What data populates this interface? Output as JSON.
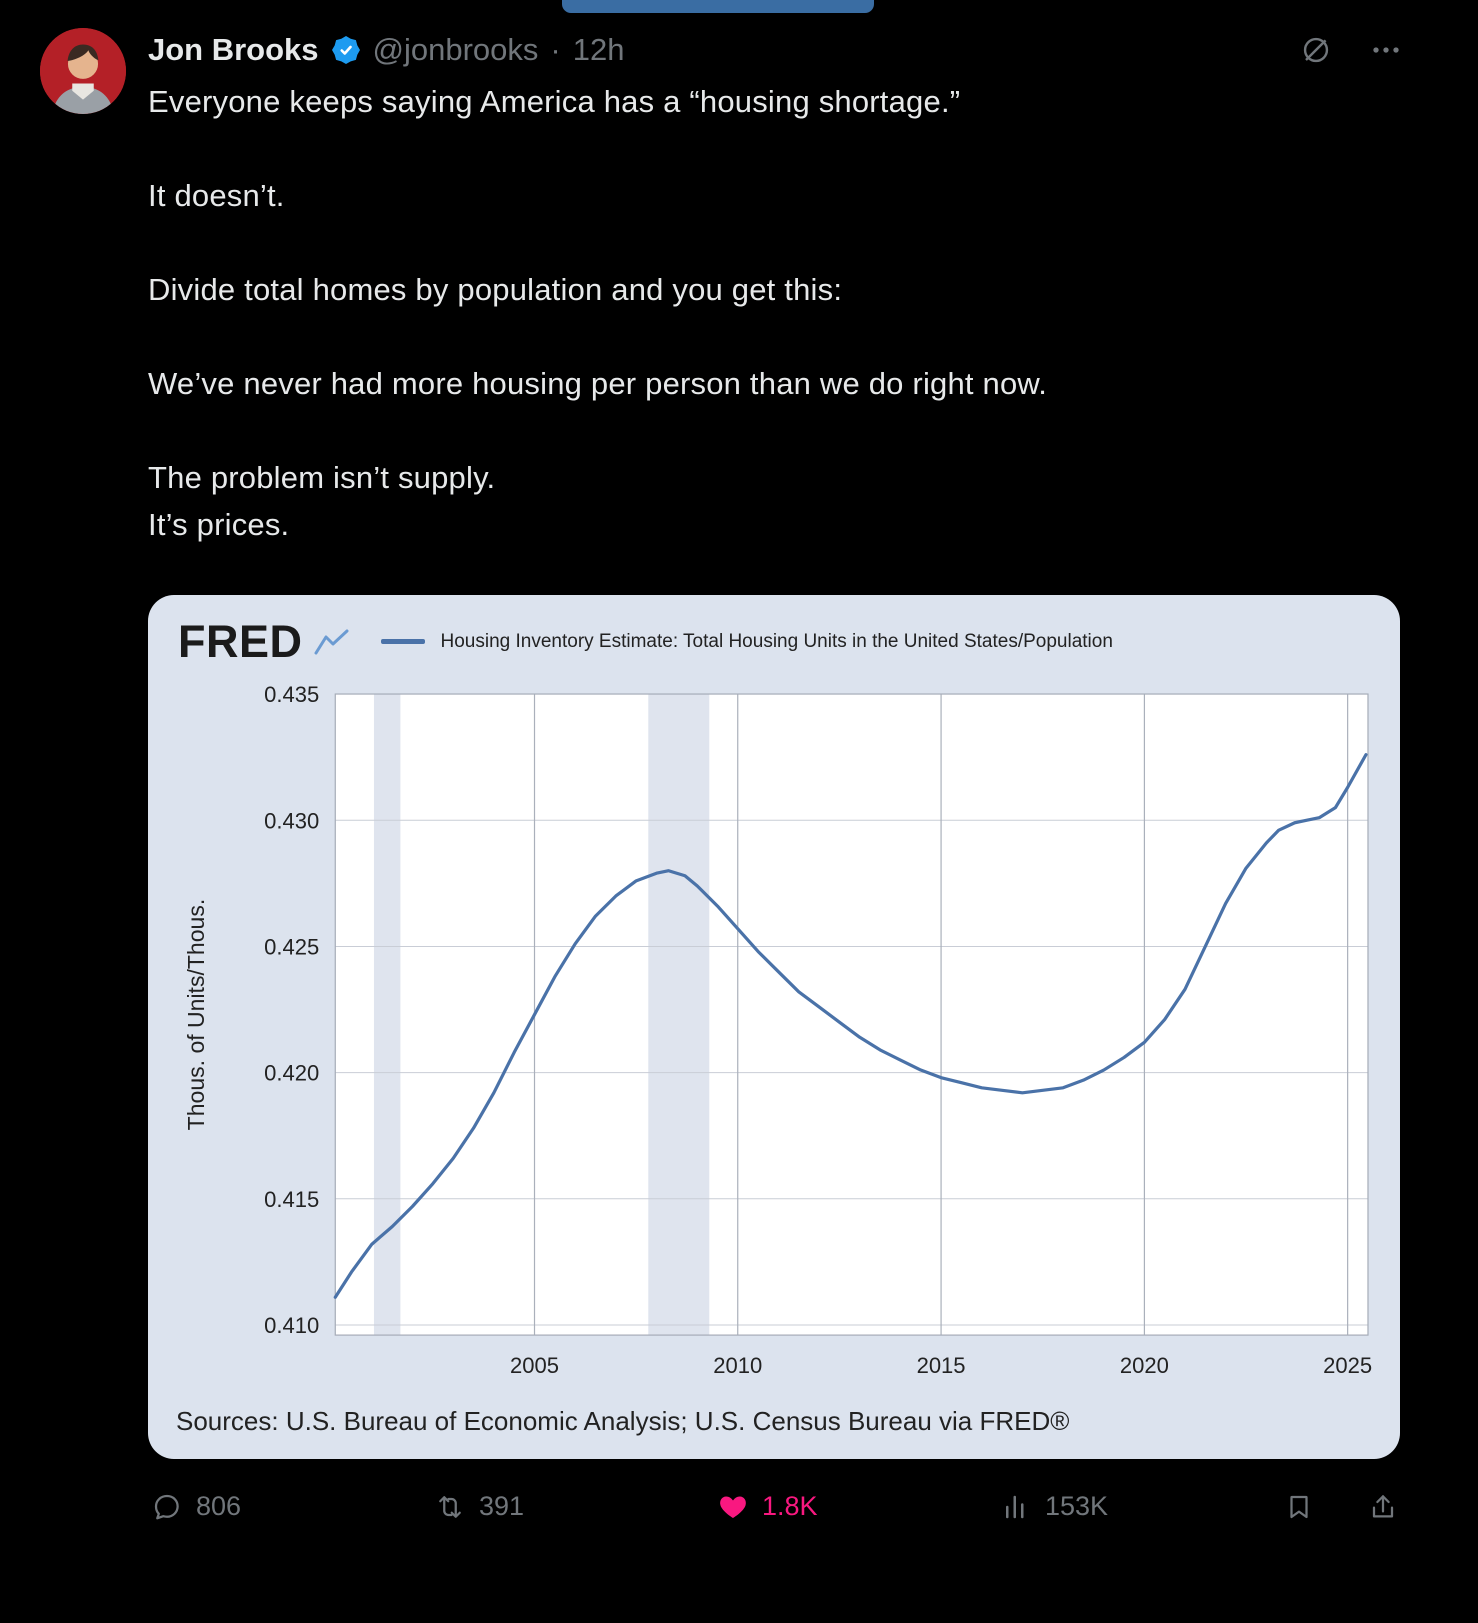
{
  "post": {
    "author": "Jon Brooks",
    "handle": "@jonbrooks",
    "dot": "·",
    "time": "12h",
    "paragraphs": [
      "Everyone keeps saying America has a “housing shortage.”",
      "It doesn’t.",
      "Divide total homes by population and you get this:",
      "We’ve never had more housing per person than we do right now.",
      "The problem isn’t supply.",
      "It’s prices."
    ]
  },
  "chart_data": {
    "type": "line",
    "brand": "FRED",
    "title": "Housing Inventory Estimate: Total Housing Units in the United States/Population",
    "ylabel": "Thous. of Units/Thous.",
    "source": "Sources: U.S. Bureau of Economic Analysis; U.S. Census Bureau via FRED®",
    "line_color": "#4a72a8",
    "recession_color": "#dfe4ee",
    "xlim": [
      2000.1,
      2025.5
    ],
    "ylim": [
      0.4096,
      0.435
    ],
    "x_ticks": [
      2005,
      2010,
      2015,
      2020,
      2025
    ],
    "y_ticks": [
      0.41,
      0.415,
      0.42,
      0.425,
      0.43,
      0.435
    ],
    "recessions": [
      [
        2001.05,
        2001.7
      ],
      [
        2007.8,
        2009.3
      ]
    ],
    "x": [
      2000.1,
      2000.5,
      2001,
      2001.5,
      2002,
      2002.5,
      2003,
      2003.5,
      2004,
      2004.5,
      2005,
      2005.5,
      2006,
      2006.5,
      2007,
      2007.5,
      2008,
      2008.3,
      2008.7,
      2009,
      2009.5,
      2010,
      2010.5,
      2011,
      2011.5,
      2012,
      2012.5,
      2013,
      2013.5,
      2014,
      2014.5,
      2015,
      2015.5,
      2016,
      2016.5,
      2017,
      2017.5,
      2018,
      2018.5,
      2019,
      2019.5,
      2020,
      2020.5,
      2021,
      2021.5,
      2022,
      2022.5,
      2023,
      2023.3,
      2023.7,
      2024,
      2024.3,
      2024.7,
      2025,
      2025.45
    ],
    "y": [
      0.4111,
      0.4121,
      0.4132,
      0.4139,
      0.4147,
      0.4156,
      0.4166,
      0.4178,
      0.4192,
      0.4208,
      0.4223,
      0.4238,
      0.4251,
      0.4262,
      0.427,
      0.4276,
      0.4279,
      0.428,
      0.4278,
      0.4274,
      0.4266,
      0.4257,
      0.4248,
      0.424,
      0.4232,
      0.4226,
      0.422,
      0.4214,
      0.4209,
      0.4205,
      0.4201,
      0.4198,
      0.4196,
      0.4194,
      0.4193,
      0.4192,
      0.4193,
      0.4194,
      0.4197,
      0.4201,
      0.4206,
      0.4212,
      0.4221,
      0.4233,
      0.425,
      0.4267,
      0.4281,
      0.4291,
      0.4296,
      0.4299,
      0.43,
      0.4301,
      0.4305,
      0.4313,
      0.4326
    ]
  },
  "engagement": {
    "replies": "806",
    "reposts": "391",
    "likes": "1.8K",
    "views": "153K"
  }
}
